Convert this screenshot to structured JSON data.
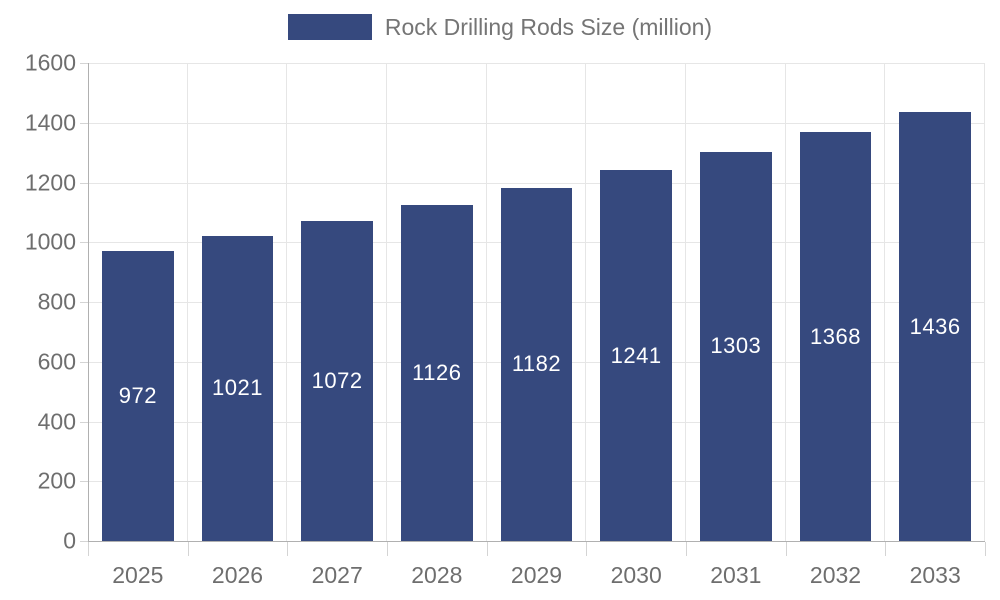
{
  "chart_data": {
    "type": "bar",
    "title": "Rock Drilling Rods Size (million)",
    "categories": [
      "2025",
      "2026",
      "2027",
      "2028",
      "2029",
      "2030",
      "2031",
      "2032",
      "2033"
    ],
    "values": [
      972,
      1021,
      1072,
      1126,
      1182,
      1241,
      1303,
      1368,
      1436
    ],
    "series": [
      {
        "name": "Rock Drilling Rods Size (million)",
        "values": [
          972,
          1021,
          1072,
          1126,
          1182,
          1241,
          1303,
          1368,
          1436
        ]
      }
    ],
    "xlabel": "",
    "ylabel": "",
    "ylim": [
      0,
      1600
    ],
    "ytick_step": 200,
    "ytick_labels": [
      "0",
      "200",
      "400",
      "600",
      "800",
      "1000",
      "1200",
      "1400",
      "1600"
    ],
    "grid": true,
    "legend_position": "top-center",
    "value_labels_inside_bars": true
  },
  "colors": {
    "bar": "#36497e",
    "bar_value_text": "#ffffff",
    "axis_line": "#b0b0b0",
    "gridline": "#e6e6e6",
    "tick_mark": "#d4d4d4",
    "axis_text": "#6e6e6e",
    "legend_text": "#757575",
    "background": "#ffffff"
  }
}
